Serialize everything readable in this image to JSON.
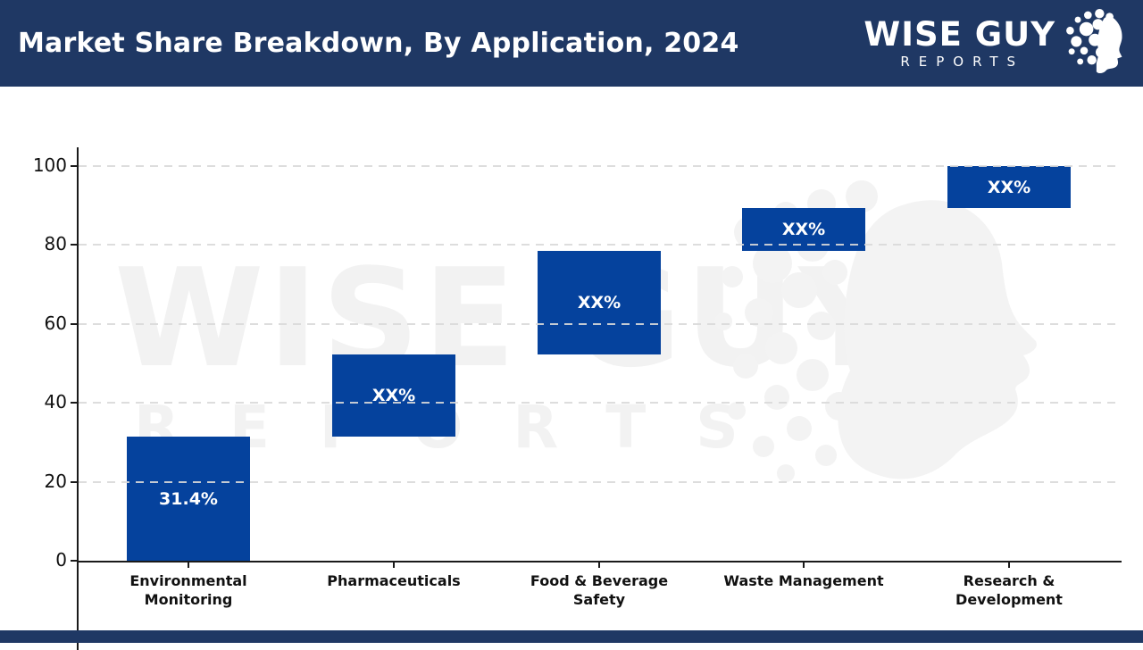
{
  "header": {
    "title": "Market Share Breakdown, By Application, 2024"
  },
  "logo": {
    "name": "Wise Guy Reports",
    "line1": "WISE GUY",
    "line2": "REPORTS"
  },
  "watermark": {
    "line1": "WISE GUY",
    "line2": "REPORTS"
  },
  "chart_data": {
    "type": "bar",
    "subtype": "floating-waterfall",
    "title": "Market Share Breakdown, By Application, 2024",
    "xlabel": "",
    "ylabel": "",
    "ylim": [
      0,
      105
    ],
    "yticks": [
      0,
      20,
      40,
      60,
      80,
      100
    ],
    "grid": "horizontal-dashed",
    "legend": "none",
    "categories": [
      "Environmental Monitoring",
      "Pharmaceuticals",
      "Food & Beverage Safety",
      "Waste Management",
      "Research & Development"
    ],
    "category_lines": [
      [
        "Environmental",
        "Monitoring"
      ],
      [
        "Pharmaceuticals"
      ],
      [
        "Food & Beverage",
        "Safety"
      ],
      [
        "Waste Management"
      ],
      [
        "Research &",
        "Development"
      ]
    ],
    "bars": [
      {
        "category": "Environmental Monitoring",
        "start": 0,
        "end": 31.4,
        "label": "31.4%"
      },
      {
        "category": "Pharmaceuticals",
        "start": 31.4,
        "end": 52.3,
        "label": "XX%"
      },
      {
        "category": "Food & Beverage Safety",
        "start": 52.3,
        "end": 78.5,
        "label": "XX%"
      },
      {
        "category": "Waste Management",
        "start": 78.5,
        "end": 89.3,
        "label": "XX%"
      },
      {
        "category": "Research & Development",
        "start": 89.3,
        "end": 100,
        "label": "XX%"
      }
    ]
  },
  "colors": {
    "header_bg": "#1f3864",
    "footer_bg": "#1f3864",
    "bar": "#05429d",
    "grid": "#d9d9d9",
    "axis": "#1a1a1a",
    "watermark": "#f2f2f2",
    "title_text": "#ffffff",
    "bar_label_text": "#ffffff"
  }
}
